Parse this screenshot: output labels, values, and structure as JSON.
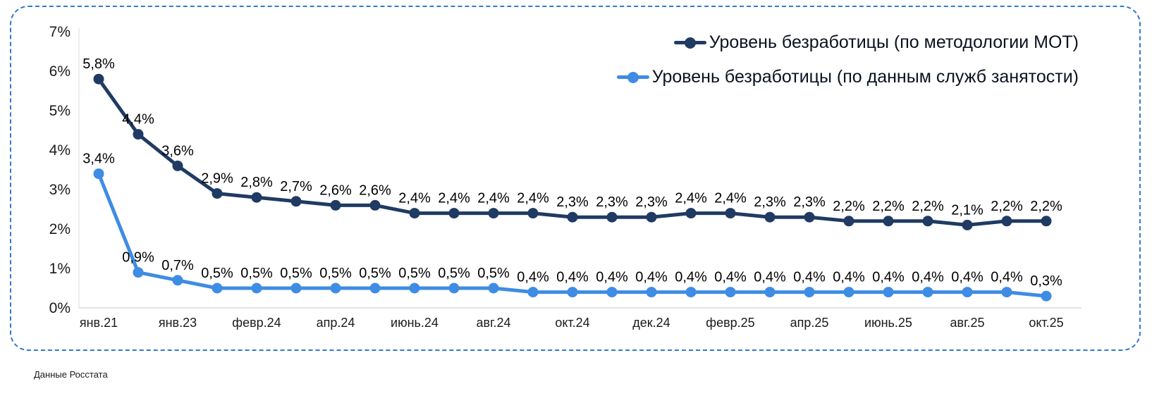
{
  "frame": {
    "border_color": "#2f7ad1"
  },
  "legend": {
    "items": [
      {
        "label": "Уровень безработицы (по методологии МОТ)",
        "color": "#1f3b63"
      },
      {
        "label": "Уровень безработицы (по данным служб занятости)",
        "color": "#3e8ce4"
      }
    ]
  },
  "source_note": "Данные Росстата",
  "chart_data": {
    "type": "line",
    "title": "",
    "xlabel": "",
    "ylabel": "",
    "ylim": [
      0,
      7
    ],
    "grid": false,
    "legend_position": "top-right",
    "decimal_separator": ",",
    "label_suffix": "%",
    "y_ticks": [
      "0%",
      "1%",
      "2%",
      "3%",
      "4%",
      "5%",
      "6%",
      "7%"
    ],
    "x_tick_labels": [
      "янв.21",
      "янв.23",
      "февр.24",
      "апр.24",
      "июнь.24",
      "авг.24",
      "окт.24",
      "дек.24",
      "февр.25",
      "апр.25",
      "июнь.25",
      "авг.25",
      "окт.25"
    ],
    "x_tick_point_indices": [
      0,
      2,
      4,
      6,
      8,
      10,
      12,
      14,
      16,
      18,
      20,
      22,
      24
    ],
    "series": [
      {
        "name": "Уровень безработицы (по методологии МОТ)",
        "color": "#1f3b63",
        "values": [
          5.8,
          4.4,
          3.6,
          2.9,
          2.8,
          2.7,
          2.6,
          2.6,
          2.4,
          2.4,
          2.4,
          2.4,
          2.3,
          2.3,
          2.3,
          2.4,
          2.4,
          2.3,
          2.3,
          2.2,
          2.2,
          2.2,
          2.1,
          2.2,
          2.2
        ]
      },
      {
        "name": "Уровень безработицы (по данным служб занятости)",
        "color": "#3e8ce4",
        "values": [
          3.4,
          0.9,
          0.7,
          0.5,
          0.5,
          0.5,
          0.5,
          0.5,
          0.5,
          0.5,
          0.5,
          0.4,
          0.4,
          0.4,
          0.4,
          0.4,
          0.4,
          0.4,
          0.4,
          0.4,
          0.4,
          0.4,
          0.4,
          0.4,
          0.3
        ]
      }
    ]
  }
}
